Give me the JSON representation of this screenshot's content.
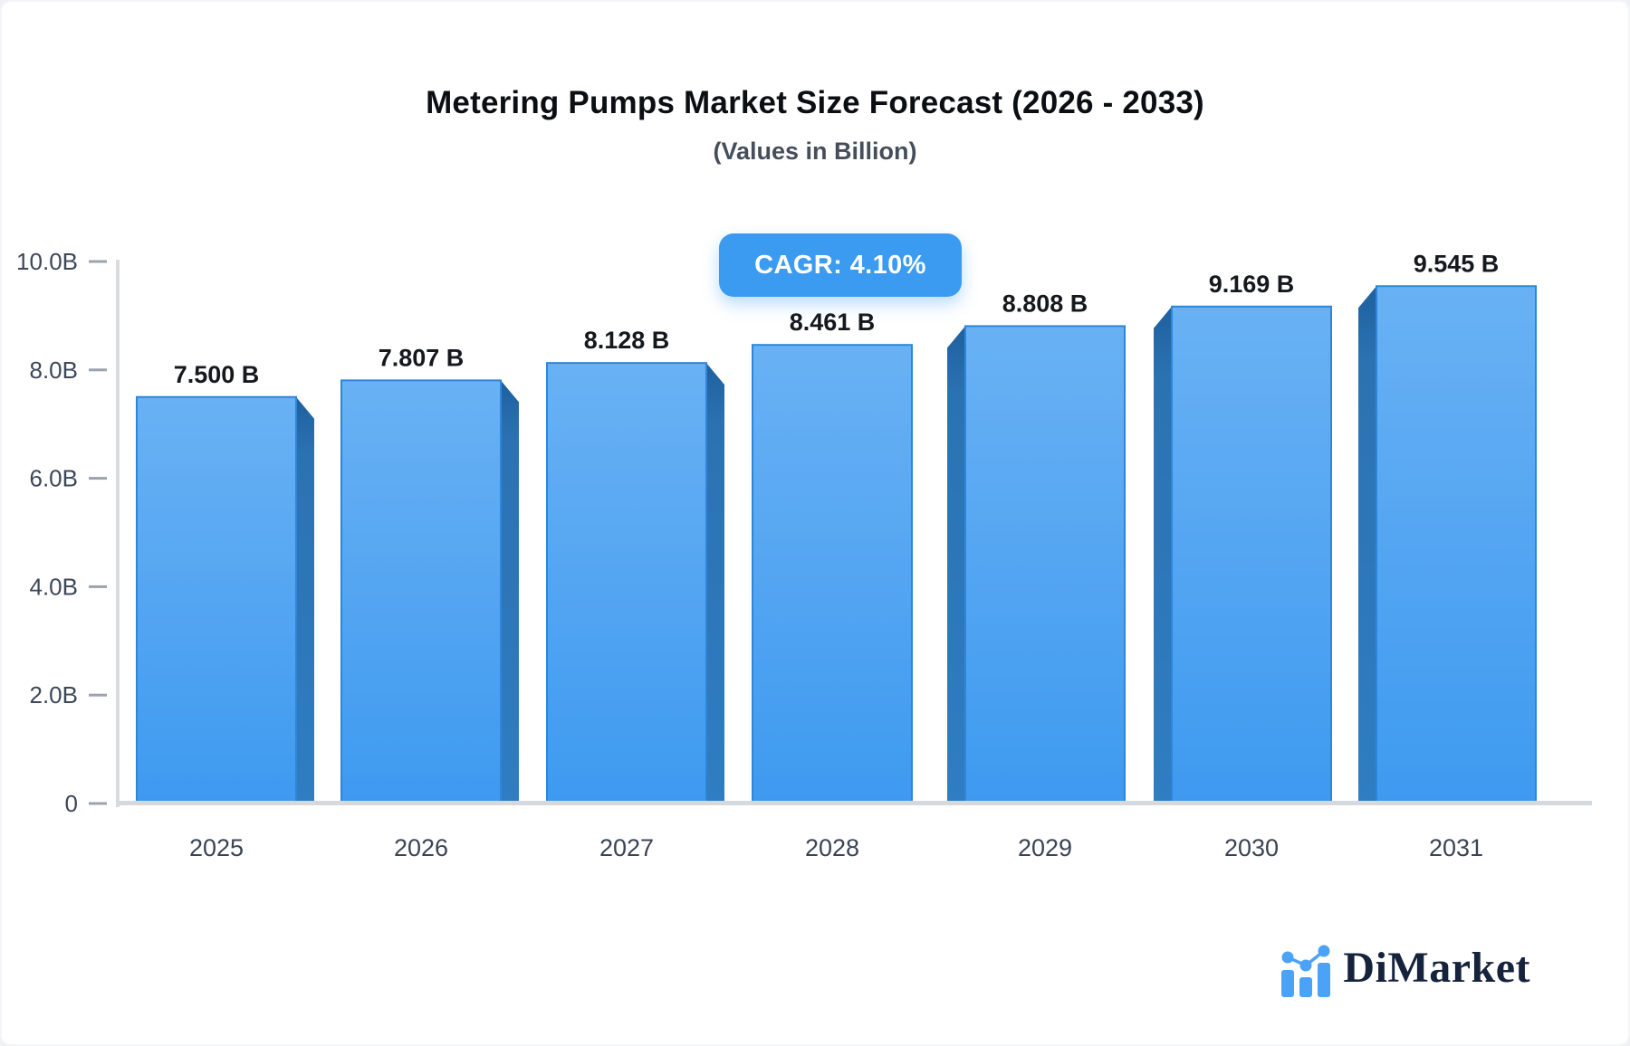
{
  "title": "Metering Pumps Market Size Forecast (2026 - 2033)",
  "subtitle": "(Values in Billion)",
  "cagr_badge": "CAGR: 4.10%",
  "brand": {
    "name": "DiMarket"
  },
  "chart_data": {
    "type": "bar",
    "title": "Metering Pumps Market Size Forecast (2026 - 2033)",
    "subtitle": "(Values in Billion)",
    "unit": "Billion",
    "categories": [
      "2025",
      "2026",
      "2027",
      "2028",
      "2029",
      "2030",
      "2031"
    ],
    "values": [
      7.5,
      7.807,
      8.128,
      8.461,
      8.808,
      9.169,
      9.545
    ],
    "value_labels": [
      "7.500 B",
      "7.807 B",
      "8.128 B",
      "8.461 B",
      "8.808 B",
      "9.169 B",
      "9.545 B"
    ],
    "ylim": [
      0,
      10
    ],
    "ytick_values": [
      0,
      2,
      4,
      6,
      8,
      10
    ],
    "ytick_labels": [
      "0",
      "2.0B",
      "4.0B",
      "6.0B",
      "8.0B",
      "10.0B"
    ],
    "grid": false,
    "legend": "none",
    "bar_sides": [
      "right",
      "right",
      "right",
      "none",
      "left",
      "left",
      "left"
    ],
    "annotation": "CAGR: 4.10%",
    "colors": {
      "accent": "#3b9bf0",
      "bar_face_top": "#69b1f4",
      "bar_face_bottom": "#3e9af0",
      "bar_face_border": "#2f86d9",
      "bar_side_top": "#1f609e",
      "bar_side_bottom": "#2f7dc2",
      "axis_line": "#d8dbe0",
      "tick": "#9ba3ae",
      "value_text": "#15181d",
      "axis_text": "#3c4758",
      "brand_navy": "#16233c",
      "brand_blue": "#4aa3f7"
    }
  }
}
